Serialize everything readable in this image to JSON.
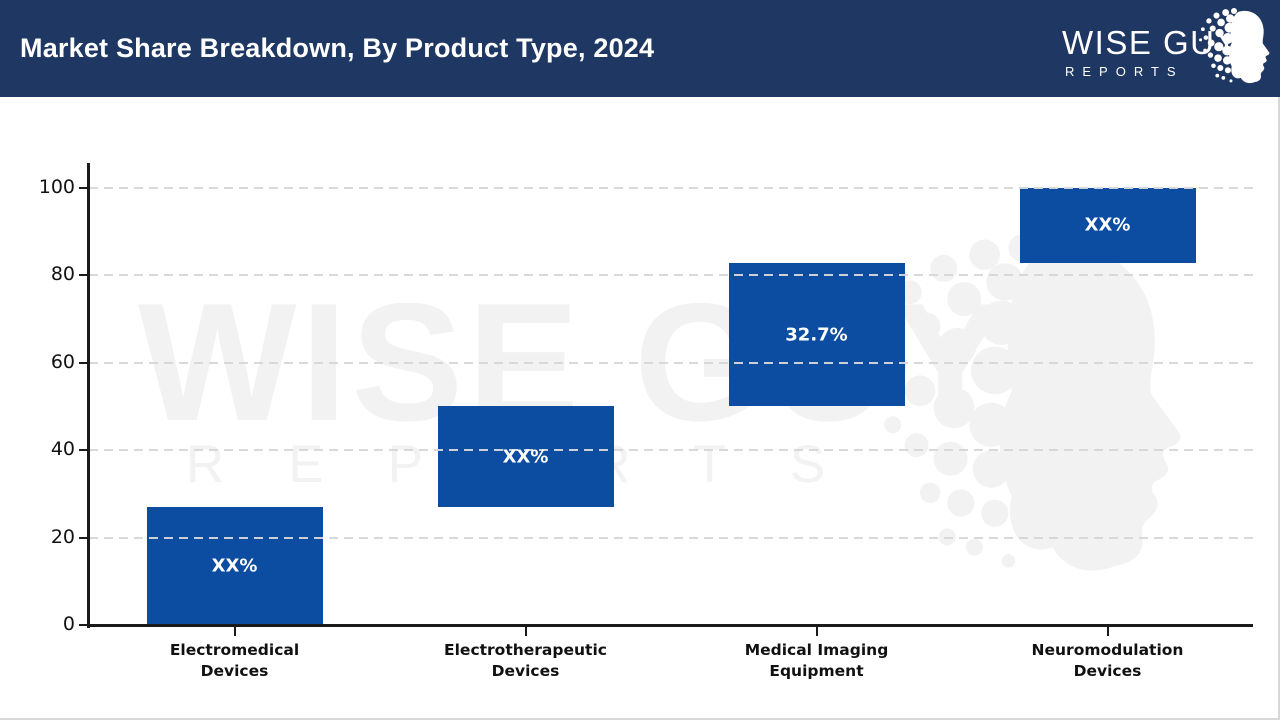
{
  "header": {
    "title": "Market Share Breakdown, By Product Type, 2024",
    "logo": {
      "brand_top": "WISE GUY",
      "brand_bottom": "REPORTS"
    }
  },
  "watermark": {
    "line1": "WISE GUY",
    "line2": "REPORTS"
  },
  "colors": {
    "header_bg": "#1f3763",
    "bar": "#0c4da2",
    "bar_label": "#ffffff",
    "axis": "#1a1a1a",
    "gridline": "#d7d7d7",
    "watermark": "#f2f2f2"
  },
  "chart_data": {
    "type": "bar",
    "subtype": "waterfall-floating-bars",
    "title": "Market Share Breakdown, By Product Type, 2024",
    "xlabel": "",
    "ylabel": "",
    "ylim": [
      0,
      100
    ],
    "yticks": [
      0,
      20,
      40,
      60,
      80,
      100
    ],
    "grid": "horizontal-dashed, drawn over bars",
    "legend": "none",
    "categories": [
      "Electromedical Devices",
      "Electrotherapeutic Devices",
      "Medical Imaging Equipment",
      "Neuromodulation Devices"
    ],
    "bars": [
      {
        "category": "Electromedical Devices",
        "label_lines": [
          "Electromedical",
          "Devices"
        ],
        "value_label": "XX%",
        "start": 0,
        "end": 27,
        "segment_size": 27
      },
      {
        "category": "Electrotherapeutic Devices",
        "label_lines": [
          "Electrotherapeutic",
          "Devices"
        ],
        "value_label": "XX%",
        "start": 27,
        "end": 50,
        "segment_size": 23
      },
      {
        "category": "Medical Imaging Equipment",
        "label_lines": [
          "Medical Imaging",
          "Equipment"
        ],
        "value_label": "32.7%",
        "start": 50,
        "end": 82.7,
        "segment_size": 32.7
      },
      {
        "category": "Neuromodulation Devices",
        "label_lines": [
          "Neuromodulation",
          "Devices"
        ],
        "value_label": "XX%",
        "start": 82.7,
        "end": 100,
        "segment_size": 17.3
      }
    ]
  }
}
